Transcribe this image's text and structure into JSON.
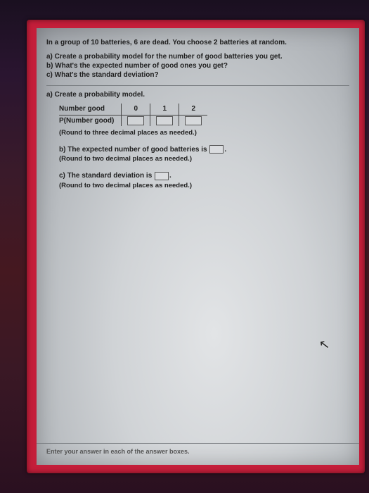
{
  "problem": {
    "intro": "In a group of 10 batteries, 6 are dead. You choose 2 batteries at random.",
    "part_a": "a) Create a probability model for the number of good batteries you get.",
    "part_b": "b) What's the expected number of good ones you get?",
    "part_c": "c) What's the standard deviation?"
  },
  "answer_a": {
    "heading": "a) Create a probability model.",
    "row1_label": "Number good",
    "col0": "0",
    "col1": "1",
    "col2": "2",
    "row2_label": "P(Number good)",
    "round_note": "(Round to three decimal places as needed.)"
  },
  "answer_b": {
    "line": "b) The expected number of good batteries is ",
    "round_note": "(Round to two decimal places as needed.)"
  },
  "answer_c": {
    "line": "c) The standard deviation is ",
    "round_note": "(Round to two decimal places as needed.)"
  },
  "footer": {
    "hint": "Enter your answer in each of the answer boxes."
  },
  "colors": {
    "bezel": "#c41e3a",
    "screen_bg": "#d0d3d6",
    "text": "#202020"
  }
}
